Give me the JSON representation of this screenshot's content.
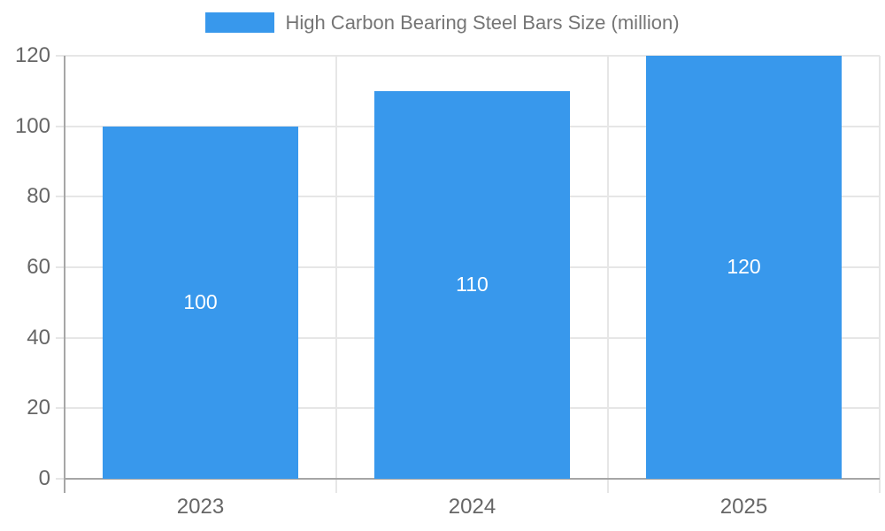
{
  "legend": {
    "label": "High Carbon Bearing Steel Bars Size (million)"
  },
  "colors": {
    "bar": "#3898ec",
    "gridline": "#e6e6e6",
    "axis": "#a6a6a6",
    "tick_text": "#666666",
    "legend_text": "#757575",
    "bar_label_text": "#ffffff",
    "background": "#ffffff"
  },
  "chart_data": {
    "type": "bar",
    "title": "High Carbon Bearing Steel Bars Size (million)",
    "categories": [
      "2023",
      "2024",
      "2025"
    ],
    "values": [
      100,
      110,
      120
    ],
    "series": [
      {
        "name": "High Carbon Bearing Steel Bars Size (million)",
        "values": [
          100,
          110,
          120
        ]
      }
    ],
    "data_labels": [
      "100",
      "110",
      "120"
    ],
    "yticks": [
      0,
      20,
      40,
      60,
      80,
      100,
      120
    ],
    "ylim": [
      0,
      120
    ],
    "xlabel": "",
    "ylabel": "",
    "grid": true,
    "legend_position": "top-center",
    "data_label_position": "inside-center"
  }
}
